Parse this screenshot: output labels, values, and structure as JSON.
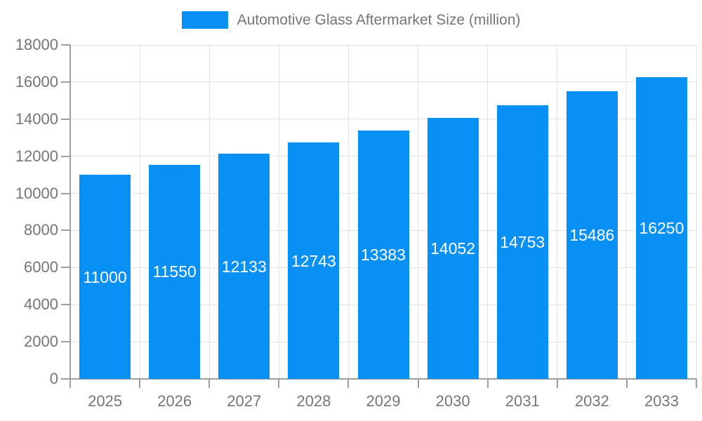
{
  "legend": {
    "label": "Automotive Glass Aftermarket Size (million)"
  },
  "chart_data": {
    "type": "bar",
    "title": "Automotive Glass Aftermarket Size (million)",
    "categories": [
      "2025",
      "2026",
      "2027",
      "2028",
      "2029",
      "2030",
      "2031",
      "2032",
      "2033"
    ],
    "values": [
      11000,
      11550,
      12133,
      12743,
      13383,
      14052,
      14753,
      15486,
      16250
    ],
    "series": [
      {
        "name": "Automotive Glass Aftermarket Size (million)",
        "values": [
          11000,
          11550,
          12133,
          12743,
          13383,
          14052,
          14753,
          15486,
          16250
        ]
      }
    ],
    "xlabel": "",
    "ylabel": "",
    "ylim": [
      0,
      18000
    ],
    "ytick_step": 2000,
    "yticks": [
      0,
      2000,
      4000,
      6000,
      8000,
      10000,
      12000,
      14000,
      16000,
      18000
    ],
    "grid": true,
    "legend_position": "top-center",
    "bar_value_labels": "inside-center-white"
  },
  "colors": {
    "bar": "#0990f5",
    "bar_label": "#ffffff",
    "axis": "#9e9e9e",
    "grid": "#e2e2e2",
    "tick_label": "#757575",
    "legend_text": "#757575",
    "background": "#ffffff"
  }
}
